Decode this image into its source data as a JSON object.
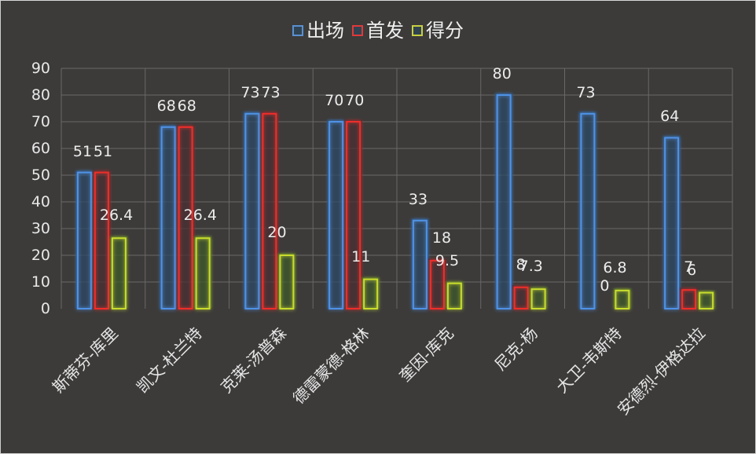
{
  "chart_data": {
    "type": "bar",
    "title": "",
    "xlabel": "",
    "ylabel": "",
    "ylim": [
      0,
      90
    ],
    "yticks": [
      0,
      10,
      20,
      30,
      40,
      50,
      60,
      70,
      80,
      90
    ],
    "grid": true,
    "legend_position": "top",
    "categories": [
      "斯蒂芬-库里",
      "凯文-杜兰特",
      "克莱-汤普森",
      "德雷蒙德-格林",
      "奎因-库克",
      "尼克-杨",
      "大卫-韦斯特",
      "安德烈-伊格达拉"
    ],
    "series": [
      {
        "name": "出场",
        "color": "#4a8fe0",
        "values": [
          51,
          68,
          73,
          70,
          33,
          80,
          73,
          64
        ]
      },
      {
        "name": "首发",
        "color": "#e8302a",
        "values": [
          51,
          68,
          73,
          70,
          18,
          8,
          0,
          7
        ]
      },
      {
        "name": "得分",
        "color": "#c8d62a",
        "values": [
          26.4,
          26.4,
          20,
          11,
          9.5,
          7.3,
          6.8,
          6
        ]
      }
    ]
  },
  "legend": [
    {
      "label": "出场",
      "color": "#4a8fe0"
    },
    {
      "label": "首发",
      "color": "#e8302a"
    },
    {
      "label": "得分",
      "color": "#c8d62a"
    }
  ]
}
